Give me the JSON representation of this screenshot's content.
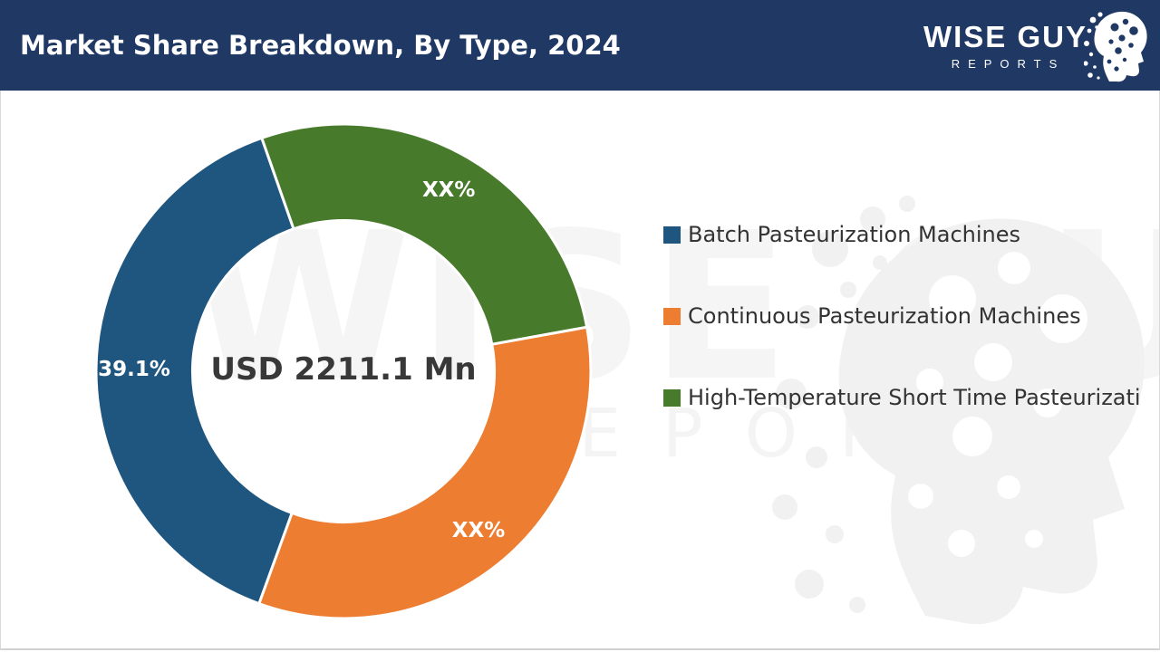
{
  "header": {
    "title": "Market Share Breakdown, By Type, 2024",
    "bg_color": "#203864",
    "logo": {
      "line1": "WISE GUY",
      "line2": "REPORTS"
    }
  },
  "watermark": {
    "line1": "WISE GUY",
    "line2": "REPORTS"
  },
  "chart_data": {
    "type": "pie",
    "variant": "donut",
    "title": "Market Share Breakdown, By Type, 2024",
    "center_label": "USD 2211.1 Mn",
    "start_angle_deg": 109.3,
    "direction": "counterclockwise",
    "inner_radius_ratio": 0.61,
    "slices": [
      {
        "name": "Batch Pasteurization Machines",
        "label": "39.1%",
        "value_pct": 39.1,
        "color": "#1f567f"
      },
      {
        "name": "Continuous Pasteurization Machines",
        "label": "XX%",
        "value_pct": 33.4,
        "color": "#ed7d31"
      },
      {
        "name": "High-Temperature Short Time Pasteurization Machines",
        "label": "XX%",
        "value_pct": 27.5,
        "color": "#477a2a"
      }
    ],
    "legend_position": "right"
  },
  "legend": {
    "items": [
      {
        "label": "Batch Pasteurization Machines",
        "color": "#1f567f"
      },
      {
        "label": "Continuous Pasteurization Machines",
        "color": "#ed7d31"
      },
      {
        "label": "High-Temperature Short Time Pasteurizati",
        "color": "#477a2a"
      }
    ]
  }
}
